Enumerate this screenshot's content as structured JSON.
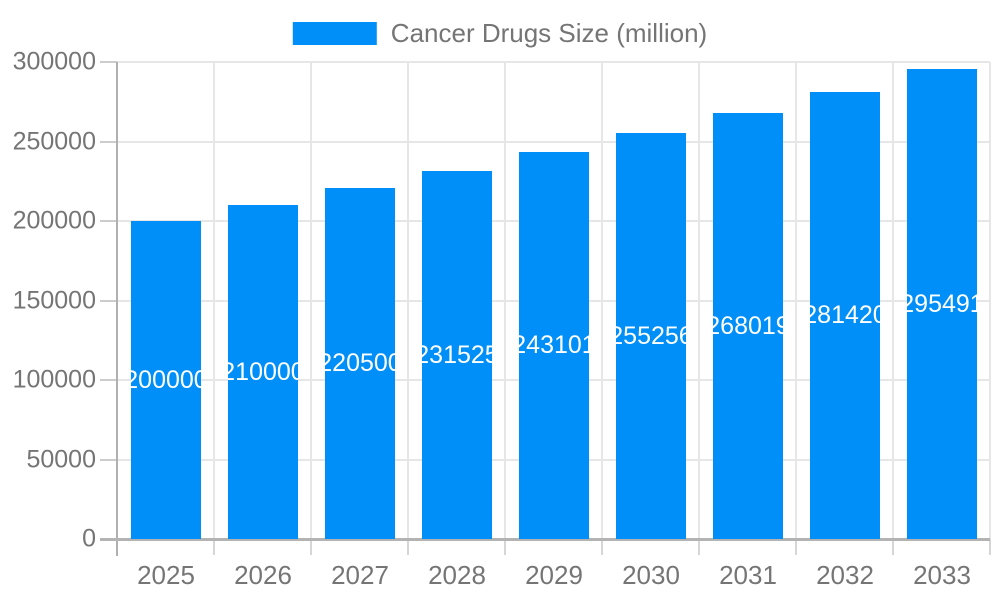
{
  "legend": {
    "label": "Cancer Drugs Size (million)"
  },
  "colors": {
    "bar": "#008ff8",
    "axis_text": "#757575",
    "grid": "#e6e6e6",
    "axis_line": "#b0b0b0",
    "tick": "#cccccc",
    "value_label": "#ffffff"
  },
  "chart_data": {
    "type": "bar",
    "title": "Cancer Drugs Size (million)",
    "xlabel": "",
    "ylabel": "",
    "categories": [
      "2025",
      "2026",
      "2027",
      "2028",
      "2029",
      "2030",
      "2031",
      "2032",
      "2033"
    ],
    "values": [
      200000,
      210000,
      220500,
      231525,
      243101,
      255256,
      268019,
      281420,
      295491
    ],
    "value_labels": [
      "200000",
      "210000",
      "220500",
      "231525",
      "243101",
      "255256",
      "268019",
      "281420",
      "295491"
    ],
    "ylim": [
      0,
      300000
    ],
    "yticks": [
      0,
      50000,
      100000,
      150000,
      200000,
      250000,
      300000
    ],
    "ytick_labels": [
      "0",
      "50000",
      "100000",
      "150000",
      "200000",
      "250000",
      "300000"
    ],
    "grid": true,
    "legend_position": "top",
    "series_name": "Cancer Drugs Size (million)"
  }
}
